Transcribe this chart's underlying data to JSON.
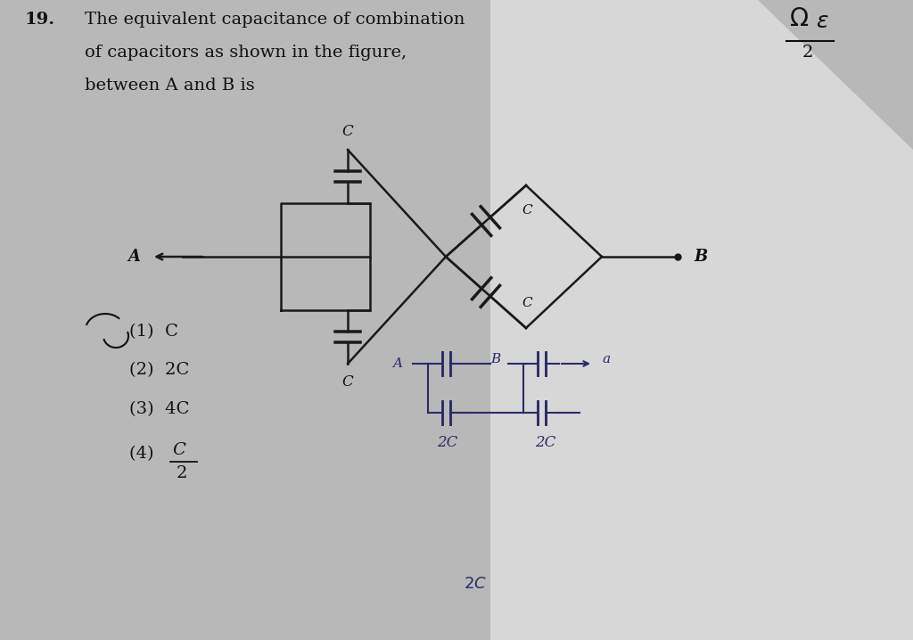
{
  "background_color": "#b8b8b8",
  "question_number": "19.",
  "question_text_line1": "The equivalent capacitance of combination",
  "question_text_line2": "of capacitors as shown in the figure,",
  "question_text_line3": "between A and B is",
  "options_text": [
    "(1)  C",
    "(2)  2C",
    "(3)  4C"
  ],
  "option4_prefix": "(4)  ",
  "option4_fraction": "C/2",
  "label_A": "A",
  "label_B": "B",
  "label_C": "C",
  "circuit_color": "#1a1a1a",
  "text_color": "#111111",
  "handwrite_color": "#2a2a6a",
  "font_size_q": 14,
  "font_size_opt": 14,
  "fig_width": 10.24,
  "fig_height": 7.18,
  "glare_color": "#e8e8e8"
}
